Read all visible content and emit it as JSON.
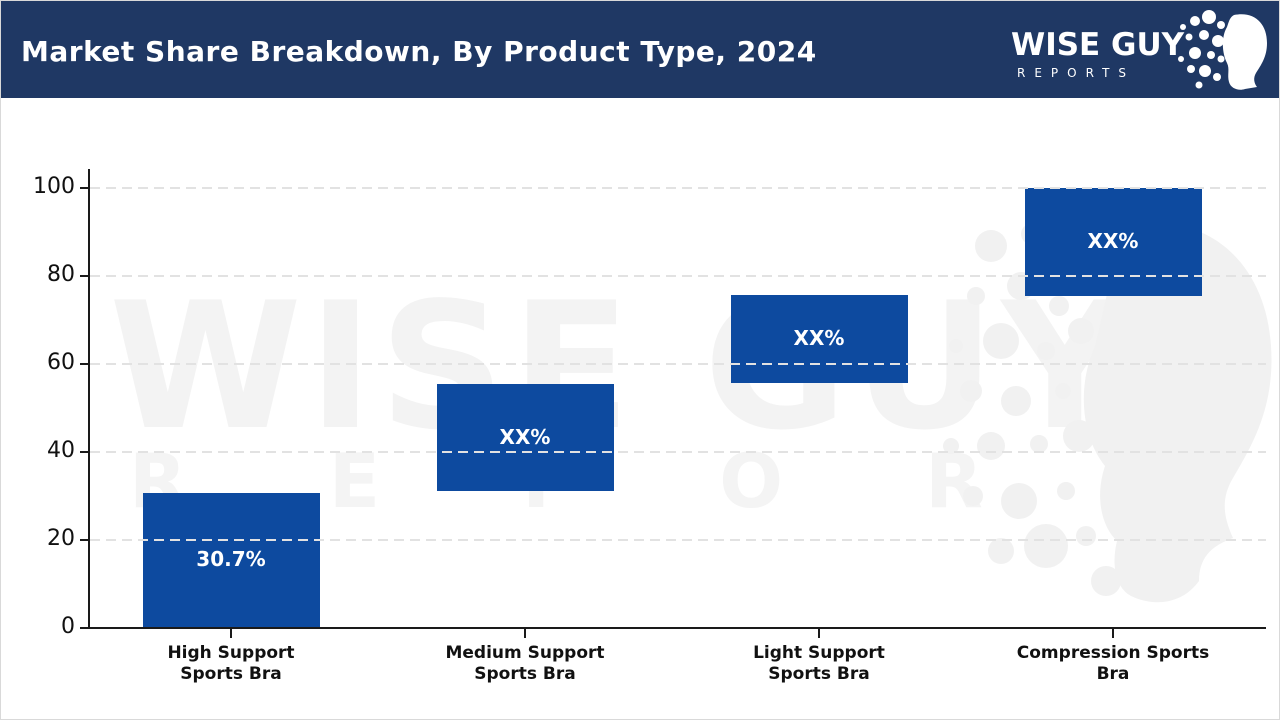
{
  "header": {
    "title": "Market Share Breakdown, By Product Type, 2024",
    "logo_line1": "WISE GUY",
    "logo_line2": "R E P O R T S"
  },
  "watermark": {
    "line1": "WISE GUY",
    "line2": "R E P O R T S"
  },
  "colors": {
    "header_bg": "#1F3864",
    "bar_fill": "#0D4A9F",
    "gridline": "#E2E2E2",
    "axis": "#1A1A1A",
    "watermark": "#F3F3F3",
    "bar_label_text": "#FFFFFF"
  },
  "chart_data": {
    "type": "bar",
    "subtype": "waterfall",
    "title": "Market Share Breakdown, By Product Type, 2024",
    "xlabel": "",
    "ylabel": "",
    "grid": true,
    "legend": false,
    "ylim": [
      0,
      104
    ],
    "yticks": [
      0,
      20,
      40,
      60,
      80,
      100
    ],
    "categories": [
      [
        "High Support",
        "Sports Bra"
      ],
      [
        "Medium Support",
        "Sports Bra"
      ],
      [
        "Light Support",
        "Sports Bra"
      ],
      [
        "Compression Sports",
        "Bra"
      ]
    ],
    "segments": [
      {
        "start": 0,
        "end": 30.7,
        "label": "30.7%"
      },
      {
        "start": 31.1,
        "end": 55.4,
        "label": "XX%"
      },
      {
        "start": 55.6,
        "end": 75.7,
        "label": "XX%"
      },
      {
        "start": 75.5,
        "end": 100,
        "label": "XX%"
      }
    ]
  }
}
